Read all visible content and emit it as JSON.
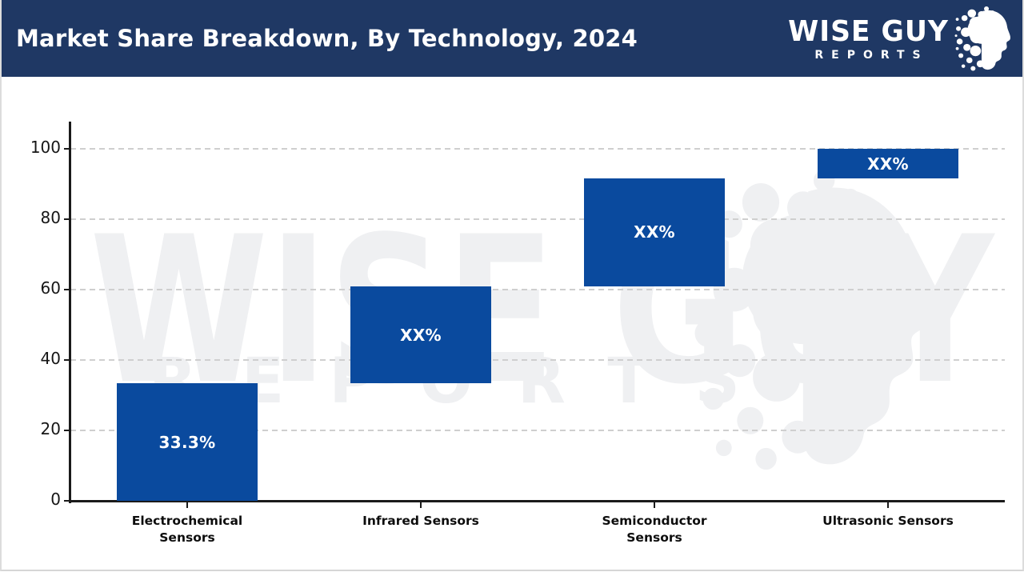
{
  "header": {
    "title": "Market Share Breakdown, By Technology, 2024",
    "background_color": "#1f3864",
    "logo": {
      "line1": "WISE GUY",
      "line2": "REPORTS",
      "icon": "wiseguy-head-icon"
    }
  },
  "watermark": {
    "line1": "WISE GUY",
    "line2": "REPORTS",
    "color": "#eff0f2"
  },
  "chart_data": {
    "type": "bar",
    "subtype": "floating-segment-waterfall",
    "title": "Market Share Breakdown, By Technology, 2024",
    "categories": [
      "Electrochemical Sensors",
      "Infrared Sensors",
      "Semiconductor Sensors",
      "Ultrasonic Sensors"
    ],
    "category_label_lines": [
      [
        "Electrochemical",
        "Sensors"
      ],
      [
        "Infrared Sensors"
      ],
      [
        "Semiconductor",
        "Sensors"
      ],
      [
        "Ultrasonic Sensors"
      ]
    ],
    "segments": [
      {
        "category": "Electrochemical Sensors",
        "start": 0,
        "end": 33.3,
        "label": "33.3%"
      },
      {
        "category": "Infrared Sensors",
        "start": 33.3,
        "end": 61,
        "label": "XX%"
      },
      {
        "category": "Semiconductor Sensors",
        "start": 61,
        "end": 91.5,
        "label": "XX%"
      },
      {
        "category": "Ultrasonic Sensors",
        "start": 91.5,
        "end": 100,
        "label": "XX%"
      }
    ],
    "ylim": [
      0,
      100
    ],
    "yticks": [
      0,
      20,
      40,
      60,
      80,
      100
    ],
    "xlabel": "",
    "ylabel": "",
    "grid": "dashed horizontal at 20/40/60/80/100",
    "legend": "none",
    "bar_color": "#0a4a9e",
    "bar_label_color": "#ffffff"
  }
}
